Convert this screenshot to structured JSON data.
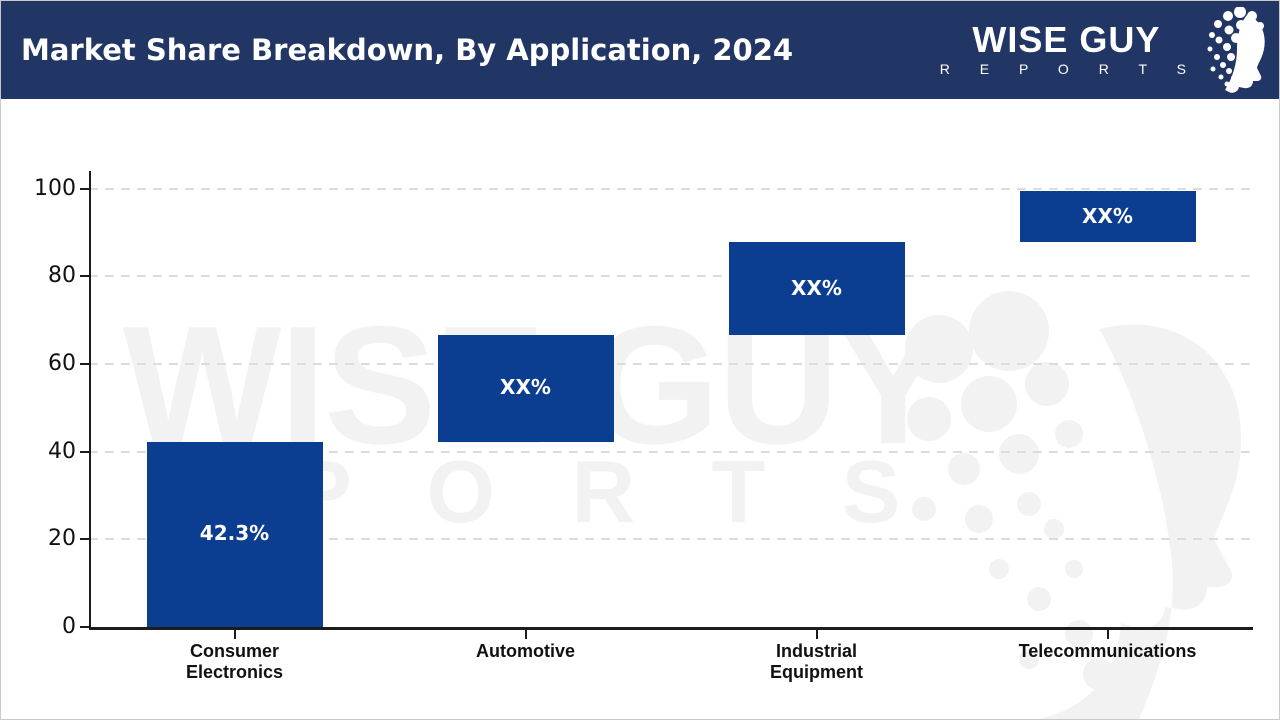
{
  "header": {
    "title": "Market Share Breakdown, By Application, 2024",
    "logo": {
      "line1": "WISE GUY",
      "line2": "R E P O R T S"
    }
  },
  "watermark": {
    "line1": "WISE GUY",
    "line2": "P O R T S"
  },
  "chart_data": {
    "type": "bar",
    "subtype": "waterfall",
    "title": "Market Share Breakdown, By Application, 2024",
    "categories": [
      "Consumer Electronics",
      "Automotive",
      "Industrial Equipment",
      "Telecommunications"
    ],
    "segments": [
      {
        "category": "Consumer Electronics",
        "lines": [
          "Consumer",
          "Electronics"
        ],
        "start": 0,
        "end": 42.3,
        "label": "42.3%"
      },
      {
        "category": "Automotive",
        "lines": [
          "Automotive"
        ],
        "start": 42.3,
        "end": 66.6,
        "label": "XX%"
      },
      {
        "category": "Industrial Equipment",
        "lines": [
          "Industrial",
          "Equipment"
        ],
        "start": 66.6,
        "end": 87.7,
        "label": "XX%"
      },
      {
        "category": "Telecommunications",
        "lines": [
          "Telecommunications"
        ],
        "start": 87.7,
        "end": 99.5,
        "label": "XX%"
      }
    ],
    "yticks": [
      0,
      20,
      40,
      60,
      80,
      100
    ],
    "ylim": [
      0,
      104
    ],
    "xlabel": "",
    "ylabel": "",
    "grid": "horizontal-dashed",
    "legend": "none",
    "bar_color": "#0b3d91",
    "label_color": "#ffffff",
    "header_bg_color": "#213664"
  }
}
